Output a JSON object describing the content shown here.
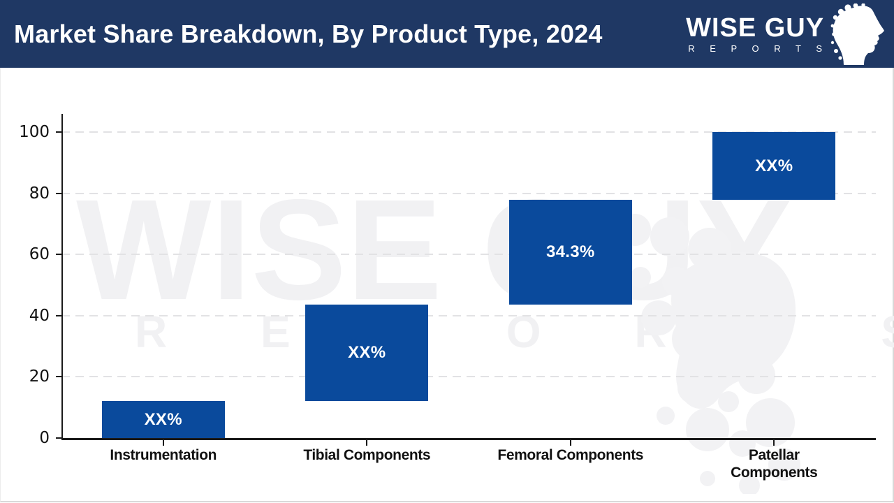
{
  "header": {
    "title": "Market Share Breakdown, By Product Type, 2024",
    "logo": {
      "line1": "WISE GUY",
      "line2": "R E P O R T S"
    }
  },
  "watermark": {
    "line1": "WISE GUY",
    "line2": "R E P O R T S"
  },
  "chart_data": {
    "type": "bar",
    "subtype": "floating-waterfall",
    "title": "Market Share Breakdown, By Product Type, 2024",
    "categories": [
      "Instrumentation",
      "Tibial Components",
      "Femoral Components",
      "Patellar Components"
    ],
    "category_display_lines": [
      [
        "Instrumentation"
      ],
      [
        "Tibial Components"
      ],
      [
        "Femoral Components"
      ],
      [
        "Patellar",
        "Components"
      ]
    ],
    "segments": [
      {
        "category": "Instrumentation",
        "start": 0,
        "end": 12,
        "label": "XX%"
      },
      {
        "category": "Tibial Components",
        "start": 12,
        "end": 43.5,
        "label": "XX%"
      },
      {
        "category": "Femoral Components",
        "start": 43.5,
        "end": 77.8,
        "label": "34.3%"
      },
      {
        "category": "Patellar Components",
        "start": 77.8,
        "end": 100,
        "label": "XX%"
      }
    ],
    "xlabel": "",
    "ylabel": "",
    "ylim": [
      0,
      100
    ],
    "yticks": [
      0,
      20,
      40,
      60,
      80,
      100
    ],
    "grid": "horizontal-dashed",
    "legend": "none",
    "bar_color": "#0a4a9c",
    "bar_label_color": "#ffffff"
  },
  "colors": {
    "header_bg": "#1f3864",
    "bar": "#0a4a9c",
    "axis": "#1a1a1a",
    "grid": "#e2e2e4",
    "watermark": "#f1f1f3",
    "figure_border": "#d9d9d9"
  }
}
